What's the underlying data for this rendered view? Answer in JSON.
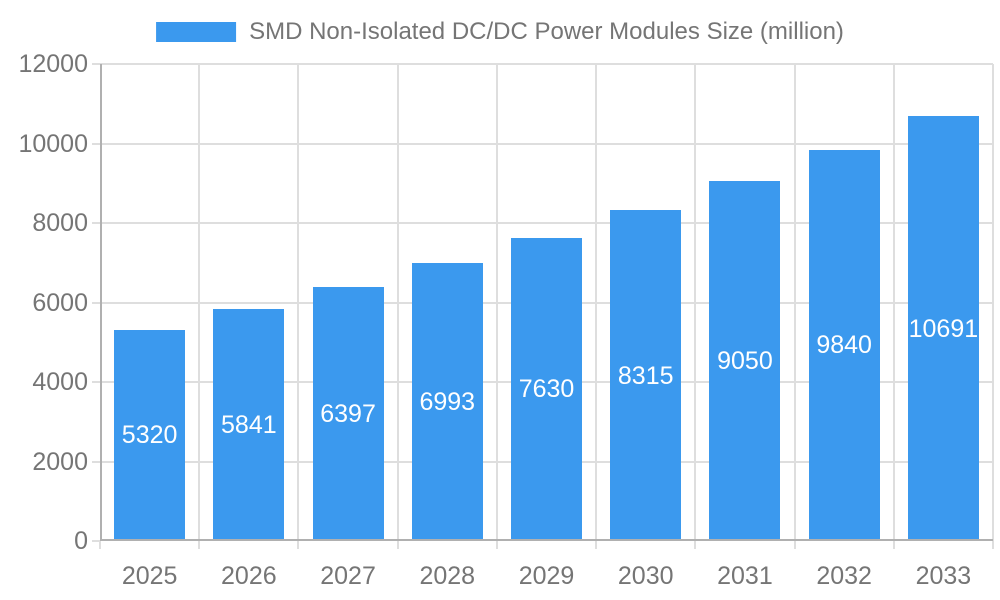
{
  "legend": {
    "label": "SMD Non-Isolated DC/DC Power Modules Size (million)"
  },
  "chart_data": {
    "type": "bar",
    "title": "SMD Non-Isolated DC/DC Power Modules Size (million)",
    "categories": [
      "2025",
      "2026",
      "2027",
      "2028",
      "2029",
      "2030",
      "2031",
      "2032",
      "2033"
    ],
    "values": [
      5320,
      5841,
      6397,
      6993,
      7630,
      8315,
      9050,
      9840,
      10691
    ],
    "xlabel": "",
    "ylabel": "",
    "ylim": [
      0,
      12000
    ],
    "yticks": [
      0,
      2000,
      4000,
      6000,
      8000,
      10000,
      12000
    ],
    "grid": true,
    "legend_position": "top-center",
    "value_label_position": "inside-center",
    "colors": {
      "bar": "#3B99EE",
      "value_label": "#FFFFFF",
      "axis_text": "#757575",
      "legend_text": "#757575",
      "gridline": "#DEDEDE",
      "axis_line": "#B0B0B0",
      "background": "#FFFFFF"
    }
  }
}
